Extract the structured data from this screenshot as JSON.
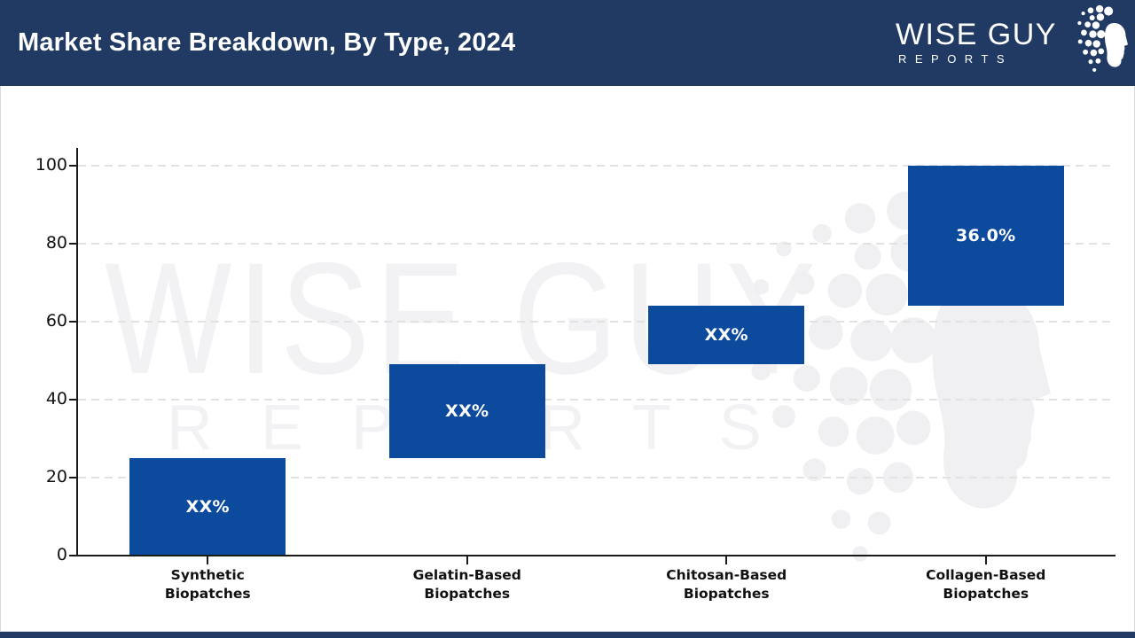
{
  "header": {
    "title": "Market Share Breakdown, By Type, 2024",
    "brand": {
      "line1": "WISE GUY",
      "line2": "REPORTS"
    }
  },
  "watermark": {
    "line1": "WISE GUY",
    "line2": "REPORTS"
  },
  "colors": {
    "header_navy": "#213a63",
    "bar_blue": "#0c4a9e",
    "gridline": "#e2e2e2",
    "watermark_gray": "#f2f2f4"
  },
  "chart_data": {
    "type": "bar",
    "subtype": "floating-waterfall",
    "title": "Market Share Breakdown, By Type, 2024",
    "categories": [
      "Synthetic\nBiopatches",
      "Gelatin-Based\nBiopatches",
      "Chitosan-Based\nBiopatches",
      "Collagen-Based\nBiopatches"
    ],
    "segments": [
      {
        "category": "Synthetic Biopatches",
        "start": 0,
        "end": 25,
        "label": "XX%"
      },
      {
        "category": "Gelatin-Based Biopatches",
        "start": 25,
        "end": 49,
        "label": "XX%"
      },
      {
        "category": "Chitosan-Based Biopatches",
        "start": 49,
        "end": 64,
        "label": "XX%"
      },
      {
        "category": "Collagen-Based Biopatches",
        "start": 64,
        "end": 100,
        "label": "36.0%"
      }
    ],
    "y_ticks": [
      0,
      20,
      40,
      60,
      80,
      100
    ],
    "ylim": [
      0,
      104
    ],
    "grid": "dashed-horizontal",
    "legend": "none",
    "bar_color": "#0c4a9e",
    "bar_label_color": "#ffffff"
  }
}
